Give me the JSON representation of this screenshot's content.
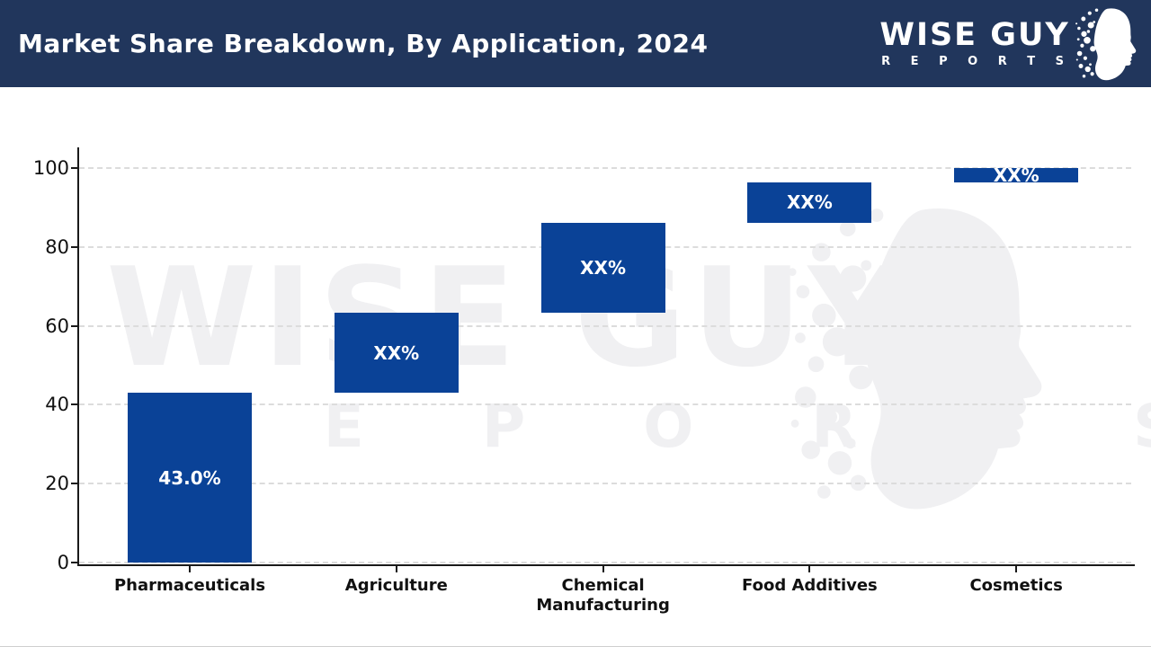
{
  "header": {
    "title": "Market Share Breakdown, By Application, 2024",
    "bg_color": "#21365C",
    "logo": {
      "line1": "WISE GUY",
      "line2": "R E P O R T S"
    }
  },
  "watermark": {
    "line1": "WISE GUY",
    "line2": "R E P O R T S"
  },
  "chart_data": {
    "type": "bar",
    "subtype": "waterfall",
    "title": "Market Share Breakdown, By Application, 2024",
    "bar_color": "#0A4297",
    "grid": "horizontal-dashed",
    "legend": "none",
    "xlabel": "",
    "ylabel": "",
    "ylim": [
      0,
      105
    ],
    "yticks": [
      0,
      20,
      40,
      60,
      80,
      100
    ],
    "categories": [
      "Pharmaceuticals",
      "Agriculture",
      "Chemical\nManufacturing",
      "Food Additives",
      "Cosmetics"
    ],
    "segments": [
      {
        "category": "Pharmaceuticals",
        "start": 0,
        "end": 43.0,
        "label": "43.0%"
      },
      {
        "category": "Agriculture",
        "start": 43.0,
        "end": 63.3,
        "label": "XX%"
      },
      {
        "category": "Chemical\nManufacturing",
        "start": 63.3,
        "end": 86.1,
        "label": "XX%"
      },
      {
        "category": "Food Additives",
        "start": 86.1,
        "end": 96.4,
        "label": "XX%"
      },
      {
        "category": "Cosmetics",
        "start": 96.4,
        "end": 100.0,
        "label": "XX%"
      }
    ]
  }
}
